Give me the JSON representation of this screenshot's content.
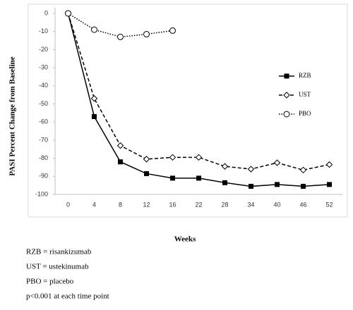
{
  "chart_data": {
    "type": "line",
    "x_label": "Weeks",
    "y_label": "PASI Percent Change from Baseline",
    "categories": [
      "0",
      "4",
      "8",
      "12",
      "16",
      "22",
      "28",
      "34",
      "40",
      "46",
      "52"
    ],
    "ylim": [
      -100,
      0
    ],
    "yticks": [
      0,
      -10,
      -20,
      -30,
      -40,
      -50,
      -60,
      -70,
      -80,
      -90,
      -100
    ],
    "series": [
      {
        "name": "RZB",
        "color": "#000000",
        "dash": "solid",
        "marker": "square",
        "values": [
          0,
          -57,
          -82,
          -88.5,
          -91,
          -91,
          -93.5,
          -95.5,
          -94.5,
          -95.5,
          -94.5
        ]
      },
      {
        "name": "UST",
        "color": "#000000",
        "dash": "dashed",
        "marker": "diamond",
        "values": [
          0,
          -47,
          -73,
          -80.5,
          -79.5,
          -79.5,
          -84.5,
          -86,
          -82.5,
          -86.5,
          -83.5
        ]
      },
      {
        "name": "PBO",
        "color": "#000000",
        "dash": "dotted",
        "marker": "circle",
        "values": [
          0,
          -9,
          -13,
          -11.5,
          -9.5,
          null,
          null,
          null,
          null,
          null,
          null
        ]
      }
    ],
    "legend": "right",
    "notes": [
      "RZB = risankizumab",
      "UST = ustekinumab",
      "PBO = placebo",
      "p<0.001 at each time point"
    ]
  }
}
